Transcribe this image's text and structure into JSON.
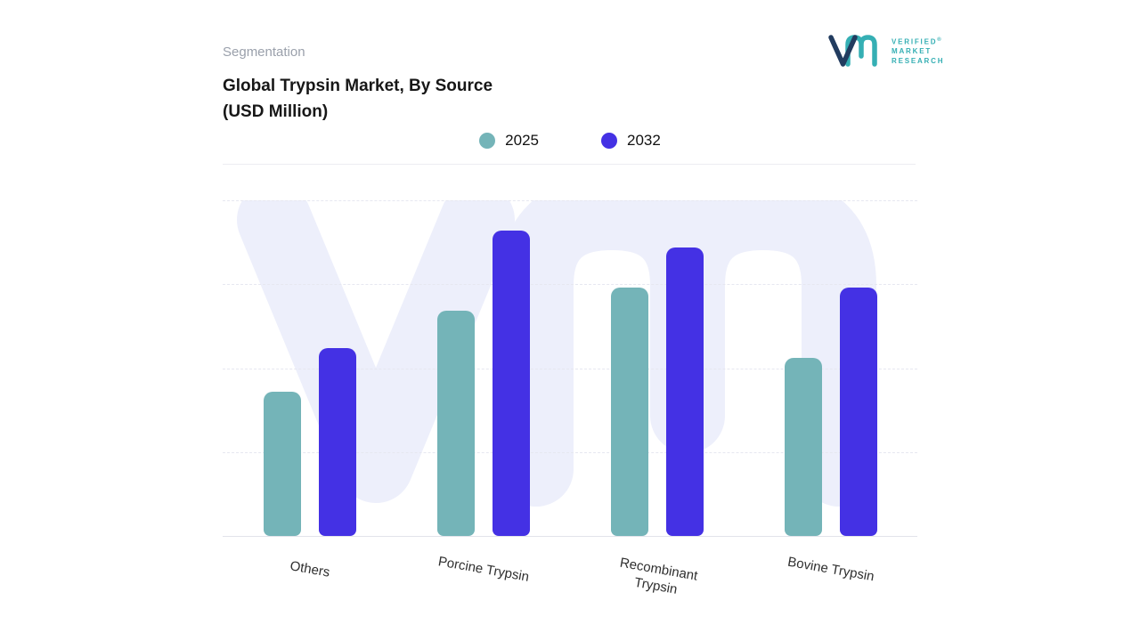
{
  "header": {
    "eyebrow": "Segmentation",
    "title_line1": "Global Trypsin Market, By Source",
    "title_line2": "(USD Million)"
  },
  "logo": {
    "lines": [
      "VERIFIED",
      "MARKET",
      "RESEARCH"
    ],
    "registered": "®",
    "mark_v_color": "#223c5f",
    "mark_m_color": "#35afb4",
    "text_color": "#35afb4"
  },
  "legend": [
    {
      "label": "2025",
      "color": "#74b4b8"
    },
    {
      "label": "2032",
      "color": "#4431e4"
    }
  ],
  "watermark": {
    "color": "#edeffb"
  },
  "chart_data": {
    "type": "bar",
    "title": "Global Trypsin Market, By Source (USD Million)",
    "units": "USD Million",
    "categories": [
      "Others",
      "Porcine Trypsin",
      "Recombinant Trypsin",
      "Bovine Trypsin"
    ],
    "categories_display": [
      [
        "Others"
      ],
      [
        "Porcine Trypsin"
      ],
      [
        "Recombinant",
        "Trypsin"
      ],
      [
        "Bovine Trypsin"
      ]
    ],
    "series": [
      {
        "name": "2025",
        "color": "#74b4b8",
        "values": [
          43,
          67,
          74,
          53
        ]
      },
      {
        "name": "2032",
        "color": "#4431e4",
        "values": [
          56,
          91,
          86,
          74
        ]
      }
    ],
    "xlabel": "",
    "ylabel": "",
    "ylim": [
      0,
      100
    ],
    "value_axis_visible": false,
    "note": "No numeric y-axis shown in source image; values are estimated relative bar heights (% of plot height).",
    "grid": "horizontal dashed",
    "legend_position": "top-center"
  }
}
